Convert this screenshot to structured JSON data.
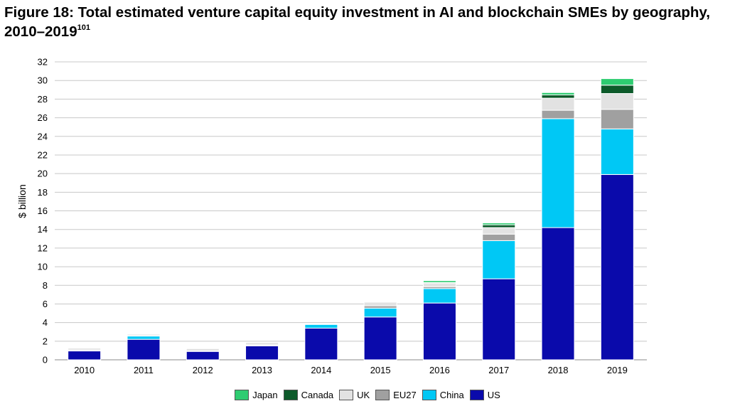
{
  "title": {
    "text": "Figure 18: Total estimated venture capital equity investment in AI and blockchain SMEs by geography, 2010–2019",
    "footnote": "101"
  },
  "chart_data": {
    "type": "bar",
    "stacked": true,
    "title": "Figure 18: Total estimated venture capital equity investment in AI and blockchain SMEs by geography, 2010–2019",
    "xlabel": "",
    "ylabel": "$ billion",
    "ylim": [
      0,
      32
    ],
    "yticks": [
      0,
      2,
      4,
      6,
      8,
      10,
      12,
      14,
      16,
      18,
      20,
      22,
      24,
      26,
      28,
      30,
      32
    ],
    "grid": true,
    "legend_position": "bottom",
    "categories": [
      "2010",
      "2011",
      "2012",
      "2013",
      "2014",
      "2015",
      "2016",
      "2017",
      "2018",
      "2019"
    ],
    "series": [
      {
        "name": "US",
        "color": "#0a0aab",
        "values": [
          0.95,
          2.2,
          0.9,
          1.5,
          3.4,
          4.6,
          6.1,
          8.7,
          14.2,
          19.9
        ]
      },
      {
        "name": "China",
        "color": "#00c8f5",
        "values": [
          0.05,
          0.35,
          0.0,
          0.05,
          0.4,
          0.95,
          1.55,
          4.1,
          11.7,
          4.9
        ]
      },
      {
        "name": "EU27",
        "color": "#a0a0a0",
        "values": [
          0.05,
          0.05,
          0.05,
          0.05,
          0.05,
          0.25,
          0.2,
          0.7,
          0.9,
          2.1
        ]
      },
      {
        "name": "UK",
        "color": "#e2e2e2",
        "values": [
          0.2,
          0.15,
          0.25,
          0.25,
          0.05,
          0.4,
          0.4,
          0.7,
          1.3,
          1.7
        ]
      },
      {
        "name": "Canada",
        "color": "#0d5a2a",
        "values": [
          0.0,
          0.0,
          0.0,
          0.0,
          0.0,
          0.05,
          0.05,
          0.3,
          0.35,
          0.9
        ]
      },
      {
        "name": "Japan",
        "color": "#2ecc71",
        "values": [
          0.0,
          0.0,
          0.0,
          0.0,
          0.0,
          0.05,
          0.2,
          0.2,
          0.25,
          0.7
        ]
      }
    ]
  },
  "legend": [
    {
      "label": "Japan",
      "color": "#2ecc71"
    },
    {
      "label": "Canada",
      "color": "#0d5a2a"
    },
    {
      "label": "UK",
      "color": "#e2e2e2"
    },
    {
      "label": "EU27",
      "color": "#a0a0a0"
    },
    {
      "label": "China",
      "color": "#00c8f5"
    },
    {
      "label": "US",
      "color": "#0a0aab"
    }
  ]
}
